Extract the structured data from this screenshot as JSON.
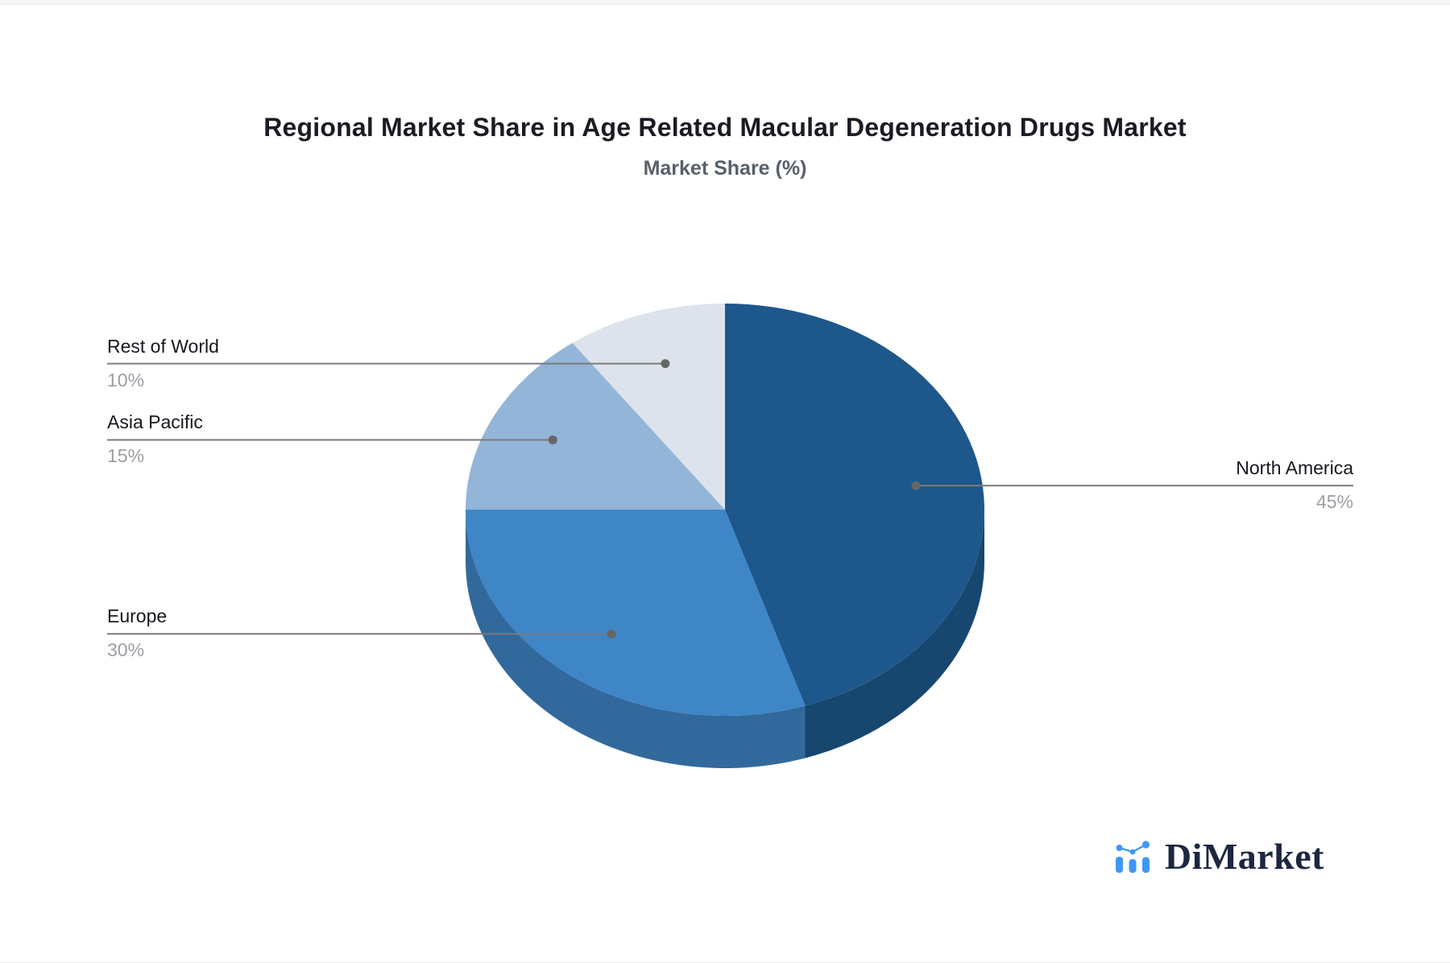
{
  "page": {
    "background_color": "#ffffff",
    "top_bar_color": "#f5f6f8"
  },
  "chart_data": {
    "type": "pie",
    "title": "Regional Market Share in Age Related Macular Degeneration Drugs Market",
    "subtitle": "Market Share (%)",
    "unit": "percent",
    "effect": "3d",
    "start_angle_deg": 0,
    "direction": "clockwise",
    "legend_position": "callout-labels",
    "slices": [
      {
        "label": "North America",
        "value": 45,
        "pct_label": "45%",
        "color": "#1d578c",
        "side_color": "#17476f",
        "callout_side": "right"
      },
      {
        "label": "Europe",
        "value": 30,
        "pct_label": "30%",
        "color": "#3e86c6",
        "side_color": "#32699c",
        "callout_side": "left"
      },
      {
        "label": "Asia Pacific",
        "value": 15,
        "pct_label": "15%",
        "color": "#93b5d8",
        "side_color": "#7fa6c9",
        "callout_side": "left"
      },
      {
        "label": "Rest of World",
        "value": 10,
        "pct_label": "10%",
        "color": "#dde3ed",
        "side_color": "#c3cedd",
        "callout_side": "left"
      }
    ],
    "callout_line_color": "#7a7a7a",
    "callout_dot_color": "#666666",
    "label_text_color": "#17171f",
    "pct_text_color": "#9b9ea3"
  },
  "branding": {
    "logo_text": "DiMarket",
    "logo_icon": "bar-chart-logo-icon",
    "logo_text_color": "#1c2740",
    "logo_icon_color": "#3f97f2"
  }
}
